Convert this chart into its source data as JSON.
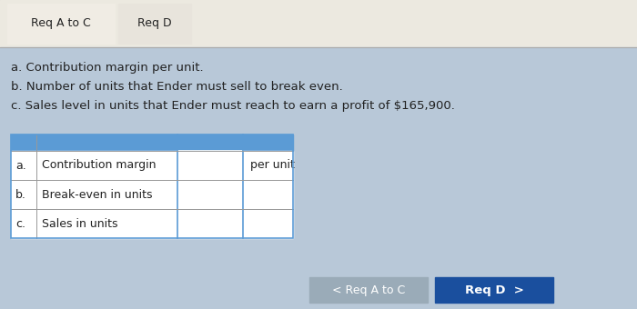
{
  "tab1_text": "Req A to C",
  "tab2_text": "Req D",
  "instruction_lines": [
    "a. Contribution margin per unit.",
    "b. Number of units that Ender must sell to break even.",
    "c. Sales level in units that Ender must reach to earn a profit of $165,900."
  ],
  "table_header_color": "#5b9bd5",
  "table_rows": [
    {
      "label_letter": "a.",
      "label_text": "Contribution margin",
      "suffix": "per unit"
    },
    {
      "label_letter": "b.",
      "label_text": "Break-even in units",
      "suffix": ""
    },
    {
      "label_letter": "c.",
      "label_text": "Sales in units",
      "suffix": ""
    }
  ],
  "btn_left_text": "< Req A to C",
  "btn_right_text": "Req D  >",
  "btn_left_color": "#9aabb8",
  "btn_right_color": "#1a4f9e",
  "tab_active_color": "#f0ece4",
  "tab_inactive_color": "#e8e4dc",
  "bg_top": "#ece9e0",
  "bg_instruction": "#b8c8d8",
  "bg_main": "#b8c8d8",
  "text_color_dark": "#222222",
  "text_color_white": "#ffffff",
  "table_border_color": "#5b9bd5",
  "table_inner_color": "#888888"
}
